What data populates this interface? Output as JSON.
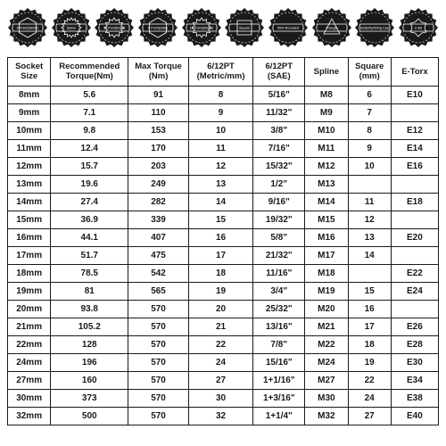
{
  "icons": [
    {
      "name": "six-point-metric",
      "label": "6 Point(Metric)",
      "shape": "hex"
    },
    {
      "name": "spline",
      "label": "Spline",
      "shape": "spline"
    },
    {
      "name": "twelve-point-sae",
      "label": "12 Point(SAE)",
      "shape": "twelve"
    },
    {
      "name": "six-point-sae",
      "label": "6 Point(SAE)",
      "shape": "hex"
    },
    {
      "name": "twelve-point-metric",
      "label": "12 Point(Metric)",
      "shape": "twelve"
    },
    {
      "name": "square",
      "label": "Square",
      "shape": "square"
    },
    {
      "name": "fifty-percent-rounded",
      "label": "50% Rounded",
      "shape": "rounded"
    },
    {
      "name": "triangle",
      "label": "Triangle",
      "shape": "triangle"
    },
    {
      "name": "butterfly-wing-cap",
      "label": "Butterfly/Wing Cap",
      "shape": "rounded"
    },
    {
      "name": "e-bit",
      "label": "e-Bit",
      "shape": "etorx"
    }
  ],
  "columns": [
    "Socket Size",
    "Recommended Torque(Nm)",
    "Max Torque (Nm)",
    "6/12PT (Metric/mm)",
    "6/12PT (SAE)",
    "Spline",
    "Square (mm)",
    "E-Torx"
  ],
  "rows": [
    [
      "8mm",
      "5.6",
      "91",
      "8",
      "5/16\"",
      "M8",
      "6",
      "E10"
    ],
    [
      "9mm",
      "7.1",
      "110",
      "9",
      "11/32\"",
      "M9",
      "7",
      ""
    ],
    [
      "10mm",
      "9.8",
      "153",
      "10",
      "3/8\"",
      "M10",
      "8",
      "E12"
    ],
    [
      "11mm",
      "12.4",
      "170",
      "11",
      "7/16\"",
      "M11",
      "9",
      "E14"
    ],
    [
      "12mm",
      "15.7",
      "203",
      "12",
      "15/32\"",
      "M12",
      "10",
      "E16"
    ],
    [
      "13mm",
      "19.6",
      "249",
      "13",
      "1/2\"",
      "M13",
      "",
      ""
    ],
    [
      "14mm",
      "27.4",
      "282",
      "14",
      "9/16\"",
      "M14",
      "11",
      "E18"
    ],
    [
      "15mm",
      "36.9",
      "339",
      "15",
      "19/32\"",
      "M15",
      "12",
      ""
    ],
    [
      "16mm",
      "44.1",
      "407",
      "16",
      "5/8\"",
      "M16",
      "13",
      "E20"
    ],
    [
      "17mm",
      "51.7",
      "475",
      "17",
      "21/32\"",
      "M17",
      "14",
      ""
    ],
    [
      "18mm",
      "78.5",
      "542",
      "18",
      "11/16\"",
      "M18",
      "",
      "E22"
    ],
    [
      "19mm",
      "81",
      "565",
      "19",
      "3/4\"",
      "M19",
      "15",
      "E24"
    ],
    [
      "20mm",
      "93.8",
      "570",
      "20",
      "25/32\"",
      "M20",
      "16",
      ""
    ],
    [
      "21mm",
      "105.2",
      "570",
      "21",
      "13/16\"",
      "M21",
      "17",
      "E26"
    ],
    [
      "22mm",
      "128",
      "570",
      "22",
      "7/8\"",
      "M22",
      "18",
      "E28"
    ],
    [
      "24mm",
      "196",
      "570",
      "24",
      "15/16\"",
      "M24",
      "19",
      "E30"
    ],
    [
      "27mm",
      "160",
      "570",
      "27",
      "1+1/16\"",
      "M27",
      "22",
      "E34"
    ],
    [
      "30mm",
      "373",
      "570",
      "30",
      "1+3/16\"",
      "M30",
      "24",
      "E38"
    ],
    [
      "32mm",
      "500",
      "570",
      "32",
      "1+1/4\"",
      "M32",
      "27",
      "E40"
    ]
  ],
  "style": {
    "border_color": "#1a1a1a",
    "text_color": "#1a1a1a",
    "background": "#ffffff",
    "icon_fill": "#1a1a1a",
    "icon_text": "#ffffff"
  }
}
